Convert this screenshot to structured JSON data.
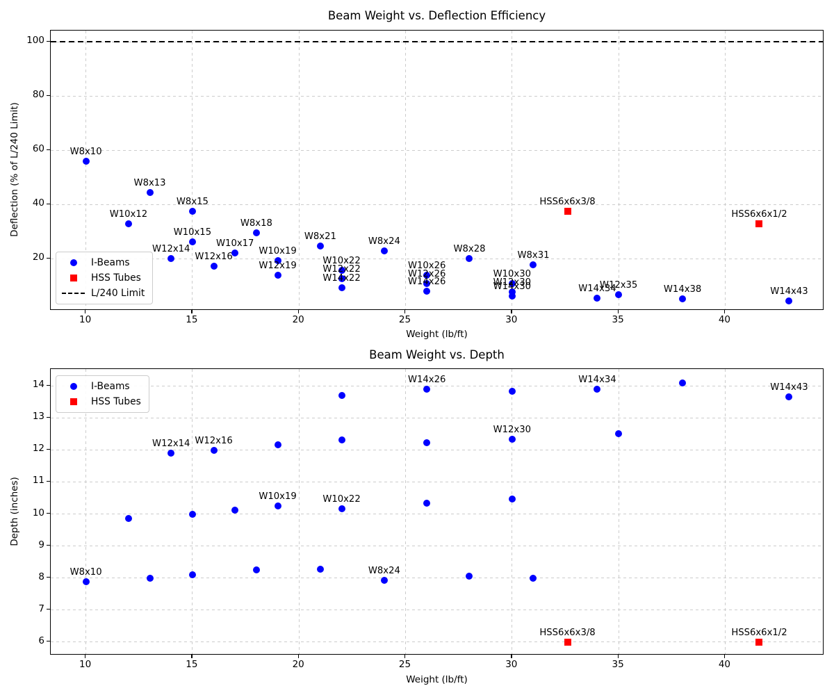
{
  "figure": {
    "background": "#ffffff",
    "text_color": "#000000",
    "grid_color": "#cccccc",
    "ibeam_color": "#0000ff",
    "hss_color": "#ff0000",
    "refline_color": "#000000"
  },
  "chart_data": [
    {
      "type": "scatter",
      "title": "Beam Weight vs. Deflection Efficiency",
      "xlabel": "Weight (lb/ft)",
      "ylabel": "Deflection (% of L/240 Limit)",
      "xlim": [
        8.35,
        44.65
      ],
      "ylim": [
        0.88,
        104.18
      ],
      "xticks": [
        10,
        15,
        20,
        25,
        30,
        35,
        40
      ],
      "yticks": [
        20,
        40,
        60,
        80,
        100
      ],
      "grid": true,
      "refline": {
        "y": 100,
        "style": "dashed",
        "color": "#000000",
        "label": "L/240 Limit"
      },
      "legend": {
        "position": "lower-left",
        "entries": [
          {
            "label": "I-Beams",
            "marker": "circle",
            "color": "#0000ff"
          },
          {
            "label": "HSS Tubes",
            "marker": "square",
            "color": "#ff0000"
          },
          {
            "label": "L/240 Limit",
            "marker": "dashed-line",
            "color": "#000000"
          }
        ]
      },
      "series": [
        {
          "name": "I-Beams",
          "marker": "circle",
          "color": "#0000ff",
          "points": [
            {
              "label": "W8x10",
              "x": 10,
              "y": 56.0,
              "labeled": true
            },
            {
              "label": "W10x12",
              "x": 12,
              "y": 32.8,
              "labeled": true
            },
            {
              "label": "W8x13",
              "x": 13,
              "y": 44.5,
              "labeled": true
            },
            {
              "label": "W12x14",
              "x": 14,
              "y": 20.1,
              "labeled": true
            },
            {
              "label": "W8x15",
              "x": 15,
              "y": 37.6,
              "labeled": true
            },
            {
              "label": "W10x15",
              "x": 15,
              "y": 26.2,
              "labeled": true
            },
            {
              "label": "W12x16",
              "x": 16,
              "y": 17.4,
              "labeled": true
            },
            {
              "label": "W10x17",
              "x": 17,
              "y": 22.1,
              "labeled": true
            },
            {
              "label": "W8x18",
              "x": 18,
              "y": 29.6,
              "labeled": true
            },
            {
              "label": "W10x19",
              "x": 19,
              "y": 19.3,
              "labeled": true
            },
            {
              "label": "W12x19",
              "x": 19,
              "y": 13.9,
              "labeled": true
            },
            {
              "label": "W8x21",
              "x": 21,
              "y": 24.7,
              "labeled": true
            },
            {
              "label": "W10x22",
              "x": 22,
              "y": 15.8,
              "labeled": true
            },
            {
              "label": "W12x22",
              "x": 22,
              "y": 12.6,
              "labeled": true
            },
            {
              "label": "W14x22",
              "x": 22,
              "y": 9.3,
              "labeled": true
            },
            {
              "label": "W8x24",
              "x": 24,
              "y": 22.9,
              "labeled": true
            },
            {
              "label": "W10x26",
              "x": 26,
              "y": 14.0,
              "labeled": true
            },
            {
              "label": "W12x26",
              "x": 26,
              "y": 11.0,
              "labeled": true
            },
            {
              "label": "W14x26",
              "x": 26,
              "y": 8.1,
              "labeled": true
            },
            {
              "label": "W8x28",
              "x": 28,
              "y": 20.2,
              "labeled": true
            },
            {
              "label": "W10x30",
              "x": 30,
              "y": 10.9,
              "labeled": true
            },
            {
              "label": "W12x30",
              "x": 30,
              "y": 7.9,
              "labeled": true
            },
            {
              "label": "W14x30",
              "x": 30,
              "y": 6.2,
              "labeled": true
            },
            {
              "label": "W8x31",
              "x": 31,
              "y": 17.8,
              "labeled": true
            },
            {
              "label": "W14x34",
              "x": 34,
              "y": 5.6,
              "labeled": true
            },
            {
              "label": "W12x35",
              "x": 35,
              "y": 6.9,
              "labeled": true
            },
            {
              "label": "W14x38",
              "x": 38,
              "y": 5.2,
              "labeled": true
            },
            {
              "label": "W14x43",
              "x": 43,
              "y": 4.4,
              "labeled": true
            }
          ]
        },
        {
          "name": "HSS Tubes",
          "marker": "square",
          "color": "#ff0000",
          "points": [
            {
              "label": "HSS6x6x3/8",
              "x": 32.6,
              "y": 37.5,
              "labeled": true
            },
            {
              "label": "HSS6x6x1/2",
              "x": 41.6,
              "y": 32.9,
              "labeled": true
            }
          ]
        }
      ]
    },
    {
      "type": "scatter",
      "title": "Beam Weight vs. Depth",
      "xlabel": "Weight (lb/ft)",
      "ylabel": "Depth (inches)",
      "xlim": [
        8.35,
        44.65
      ],
      "ylim": [
        5.58,
        14.53
      ],
      "xticks": [
        10,
        15,
        20,
        25,
        30,
        35,
        40
      ],
      "yticks": [
        6,
        7,
        8,
        9,
        10,
        11,
        12,
        13,
        14
      ],
      "grid": true,
      "refline": null,
      "legend": {
        "position": "upper-left",
        "entries": [
          {
            "label": "I-Beams",
            "marker": "circle",
            "color": "#0000ff"
          },
          {
            "label": "HSS Tubes",
            "marker": "square",
            "color": "#ff0000"
          }
        ]
      },
      "series": [
        {
          "name": "I-Beams",
          "marker": "circle",
          "color": "#0000ff",
          "points": [
            {
              "label": "W8x10",
              "x": 10,
              "y": 7.89,
              "labeled": true
            },
            {
              "label": "W10x12",
              "x": 12,
              "y": 9.87,
              "labeled": false
            },
            {
              "label": "W8x13",
              "x": 13,
              "y": 7.99,
              "labeled": false
            },
            {
              "label": "W12x14",
              "x": 14,
              "y": 11.91,
              "labeled": true
            },
            {
              "label": "W8x15",
              "x": 15,
              "y": 8.11,
              "labeled": false
            },
            {
              "label": "W10x15",
              "x": 15,
              "y": 9.99,
              "labeled": false
            },
            {
              "label": "W12x16",
              "x": 16,
              "y": 11.99,
              "labeled": true
            },
            {
              "label": "W10x17",
              "x": 17,
              "y": 10.11,
              "labeled": false
            },
            {
              "label": "W8x18",
              "x": 18,
              "y": 8.26,
              "labeled": false
            },
            {
              "label": "W10x19",
              "x": 19,
              "y": 10.24,
              "labeled": true
            },
            {
              "label": "W12x19",
              "x": 19,
              "y": 12.16,
              "labeled": false
            },
            {
              "label": "W8x21",
              "x": 21,
              "y": 8.28,
              "labeled": false
            },
            {
              "label": "W10x22",
              "x": 22,
              "y": 10.17,
              "labeled": true
            },
            {
              "label": "W12x22",
              "x": 22,
              "y": 12.31,
              "labeled": false
            },
            {
              "label": "W14x22",
              "x": 22,
              "y": 13.71,
              "labeled": false
            },
            {
              "label": "W8x24",
              "x": 24,
              "y": 7.93,
              "labeled": true
            },
            {
              "label": "W10x26",
              "x": 26,
              "y": 10.33,
              "labeled": false
            },
            {
              "label": "W12x26",
              "x": 26,
              "y": 12.22,
              "labeled": false
            },
            {
              "label": "W14x26",
              "x": 26,
              "y": 13.91,
              "labeled": true
            },
            {
              "label": "W8x28",
              "x": 28,
              "y": 8.06,
              "labeled": false
            },
            {
              "label": "W10x30",
              "x": 30,
              "y": 10.47,
              "labeled": false
            },
            {
              "label": "W12x30",
              "x": 30,
              "y": 12.34,
              "labeled": true
            },
            {
              "label": "W14x30",
              "x": 30,
              "y": 13.84,
              "labeled": false
            },
            {
              "label": "W8x31",
              "x": 31,
              "y": 8.0,
              "labeled": false
            },
            {
              "label": "W14x34",
              "x": 34,
              "y": 13.91,
              "labeled": true
            },
            {
              "label": "W12x35",
              "x": 35,
              "y": 12.5,
              "labeled": false
            },
            {
              "label": "W14x38",
              "x": 38,
              "y": 14.1,
              "labeled": false
            },
            {
              "label": "W14x43",
              "x": 43,
              "y": 13.66,
              "labeled": true
            }
          ]
        },
        {
          "name": "HSS Tubes",
          "marker": "square",
          "color": "#ff0000",
          "points": [
            {
              "label": "HSS6x6x3/8",
              "x": 32.6,
              "y": 6.0,
              "labeled": true
            },
            {
              "label": "HSS6x6x1/2",
              "x": 41.6,
              "y": 6.0,
              "labeled": true
            }
          ]
        }
      ]
    }
  ]
}
